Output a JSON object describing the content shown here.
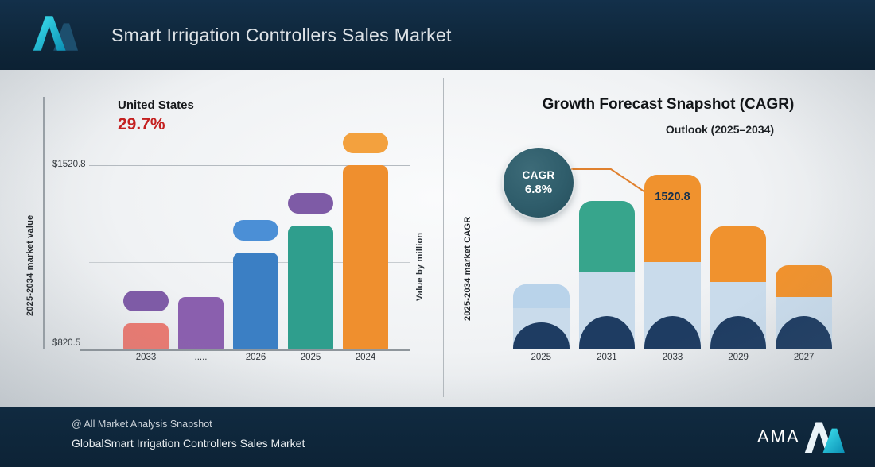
{
  "header": {
    "title": "Smart Irrigation Controllers Sales Market"
  },
  "icons": {
    "logo": "ama-mountain-logo"
  },
  "footer": {
    "line1": "@ All Market Analysis Snapshot",
    "line2": "GlobalSmart Irrigation Controllers Sales Market",
    "brand": "AMA"
  },
  "colors": {
    "header_bg": "#0e2538",
    "footer_bg": "#0d2336",
    "accent_red": "#c42020",
    "orange": "#ef8f2e",
    "teal": "#2f9e8d",
    "blue": "#3b7fc4",
    "purple": "#8a5fae",
    "pink": "#e87a72",
    "navy_dome": "#1e3c62",
    "light_blue": "#b9d3ea",
    "cagr_circle": "#2f5d6b",
    "connector": "#e0812f"
  },
  "chart_data": [
    {
      "type": "bar",
      "title": "United States",
      "highlight_value": "29.7%",
      "ylabel": "2025-2034 market value",
      "ylabel_right": "Value by million",
      "yticks": {
        "top": "$1520.8",
        "bottom": "$820.5"
      },
      "ylim": [
        820.5,
        1520.8
      ],
      "grid": true,
      "legend": false,
      "categories": [
        "2033",
        ".....",
        "2026",
        "2025",
        "2024"
      ],
      "values": [
        920,
        1020,
        1190,
        1290,
        1520.8
      ],
      "bar_colors": [
        "#e87a72",
        "#8a5fae",
        "#3b7fc4",
        "#2f9e8d",
        "#ef8f2e"
      ],
      "cap_colors": [
        "#7e5ba6",
        null,
        "#4b8fd6",
        "#7e5ba6",
        "#f3a13e"
      ]
    },
    {
      "type": "bar",
      "title": "Growth Forecast Snapshot (CAGR)",
      "subtitle": "Outlook (2025–2034)",
      "ylabel": "2025-2034 market CAGR",
      "cagr": {
        "label": "CAGR",
        "value": "6.8%"
      },
      "ylim": [
        0,
        1520.8
      ],
      "legend": false,
      "categories": [
        "2025",
        "2031",
        "2033",
        "2029",
        "2027"
      ],
      "values": [
        570,
        1290,
        1520.8,
        1070,
        730
      ],
      "value_labels": [
        null,
        null,
        "1520.8",
        null,
        null
      ],
      "top_colors": [
        "#b9d3ea",
        "#37a58c",
        "#f0922e",
        "#f0922e",
        "#f0922e"
      ],
      "mid_color": "#c9dbeb",
      "dome_color": "#1e3c62"
    }
  ]
}
